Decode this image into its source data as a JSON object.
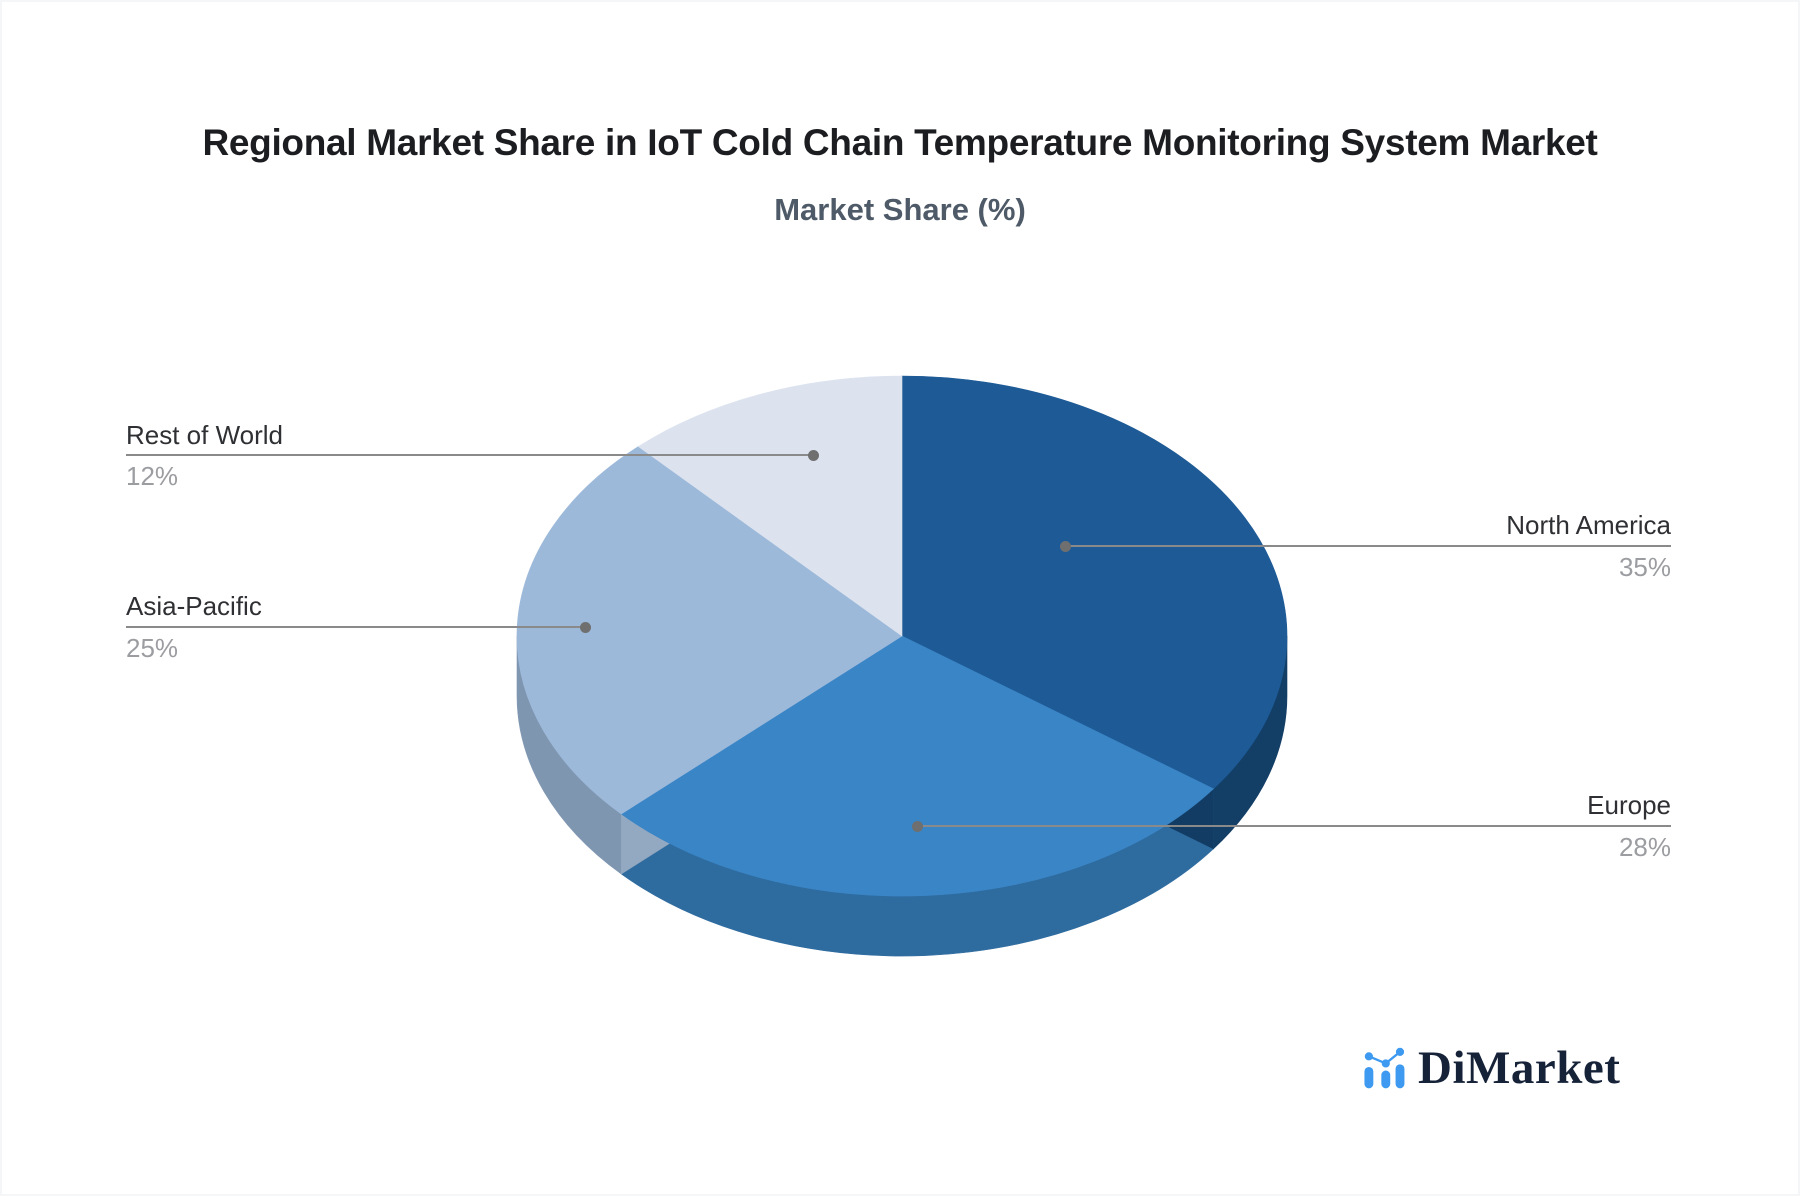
{
  "title": "Regional Market Share in IoT Cold Chain Temperature Monitoring System Market",
  "subtitle": "Market Share (%)",
  "chart_data": {
    "type": "pie",
    "style": "3d",
    "title": "Regional Market Share in IoT Cold Chain Temperature Monitoring System Market",
    "subtitle": "Market Share (%)",
    "unit": "%",
    "direction": "clockwise",
    "start_angle_deg": 0,
    "categories": [
      "North America",
      "Europe",
      "Asia-Pacific",
      "Rest of World"
    ],
    "values": [
      35,
      28,
      25,
      12
    ],
    "percent_labels": [
      "35%",
      "28%",
      "25%",
      "12%"
    ],
    "slice_colors": [
      "#1D5A96",
      "#3A85C6",
      "#9DB9DA",
      "#DCE3EF"
    ],
    "slice_side_colors": [
      "#133E66",
      "#2E6B9F",
      "#7F96B1",
      "#B6C2D2"
    ],
    "cut_face_colors": [
      "#123C63",
      "#93A8C1"
    ],
    "legend_position": "callouts"
  },
  "callouts": [
    {
      "label": "North America",
      "value": "35%",
      "side": "right"
    },
    {
      "label": "Europe",
      "value": "28%",
      "side": "right"
    },
    {
      "label": "Asia-Pacific",
      "value": "25%",
      "side": "left"
    },
    {
      "label": "Rest of World",
      "value": "12%",
      "side": "left"
    }
  ],
  "brand": {
    "name": "DiMarket",
    "icon": "bar-chart-trend-icon",
    "icon_color": "#3D9AF0",
    "text_color": "#152238"
  },
  "colors": {
    "background": "#FFFFFF",
    "title_text": "#1C1D21",
    "subtitle_text": "#4E5A68",
    "callout_label": "#2F3033",
    "callout_value": "#9B9DA1",
    "leader_line": "#8A8A8A",
    "leader_dot": "#6F6F6F"
  }
}
